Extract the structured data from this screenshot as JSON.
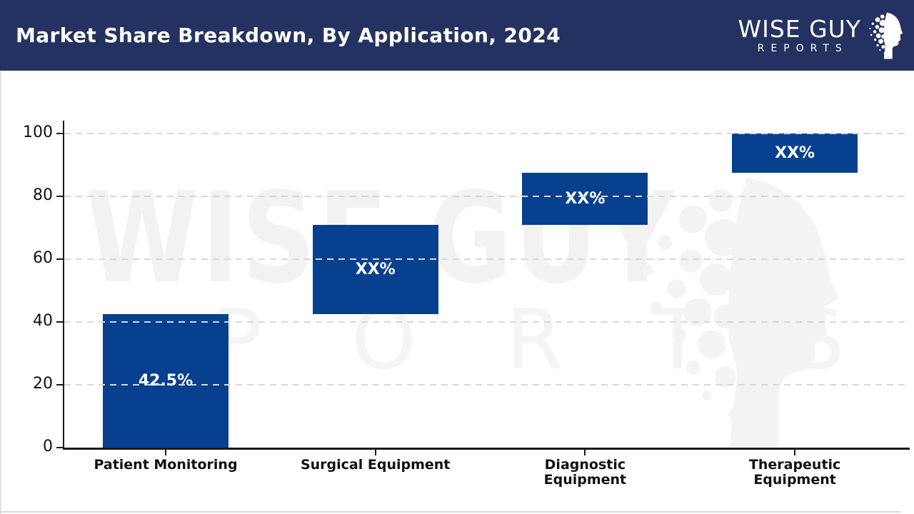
{
  "header": {
    "title": "Market Share Breakdown, By Application, 2024",
    "logo": {
      "name": "WISE GUY",
      "subtitle": "REPORTS"
    }
  },
  "watermark": {
    "line1": "WISE GUY",
    "line2": "P O R T S"
  },
  "chart_data": {
    "type": "bar",
    "variant": "waterfall",
    "title": "Market Share Breakdown, By Application, 2024",
    "xlabel": "",
    "ylabel": "",
    "ylim": [
      0,
      100
    ],
    "yticks": [
      0,
      20,
      40,
      60,
      80,
      100
    ],
    "grid": "horizontal-dashed",
    "legend": "none",
    "bar_color": "#084090",
    "value_label_color": "#ffffff",
    "categories": [
      "Patient Monitoring",
      "Surgical Equipment",
      "Diagnostic Equipment",
      "Therapeutic Equipment"
    ],
    "category_line_breaks": [
      [
        "Patient Monitoring"
      ],
      [
        "Surgical Equipment"
      ],
      [
        "Diagnostic",
        "Equipment"
      ],
      [
        "Therapeutic",
        "Equipment"
      ]
    ],
    "segments": [
      {
        "category": "Patient Monitoring",
        "start": 0,
        "end": 42.5,
        "value_label": "42.5%"
      },
      {
        "category": "Surgical Equipment",
        "start": 42.5,
        "end": 71,
        "value_label": "XX%"
      },
      {
        "category": "Diagnostic Equipment",
        "start": 71,
        "end": 87.5,
        "value_label": "XX%"
      },
      {
        "category": "Therapeutic Equipment",
        "start": 87.5,
        "end": 100,
        "value_label": "XX%"
      }
    ]
  }
}
